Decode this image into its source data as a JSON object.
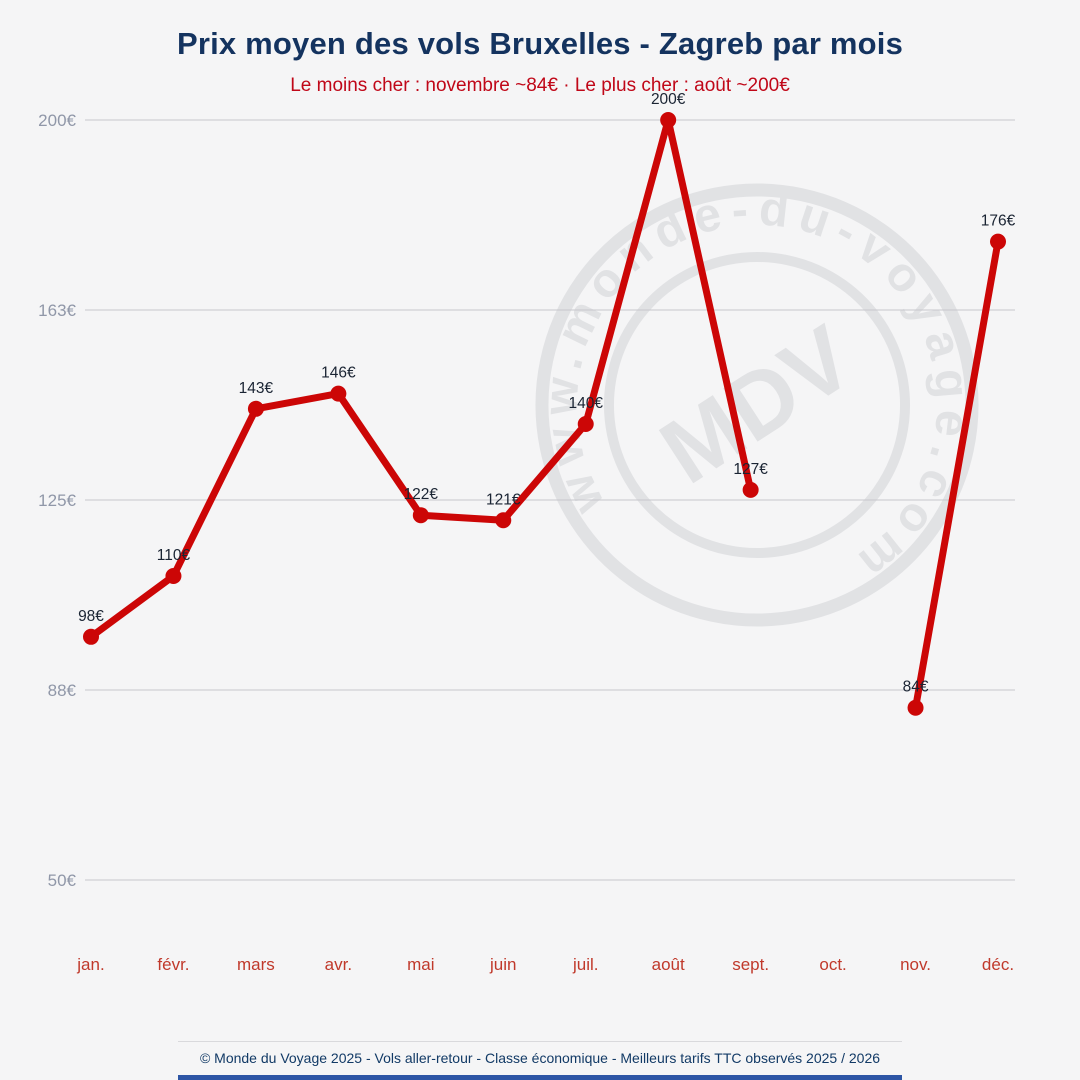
{
  "page": {
    "title": "Prix moyen des vols Bruxelles - Zagreb par mois",
    "subtitle": "Le moins cher : novembre ~84€ · Le plus cher : août ~200€",
    "footer": "© Monde du Voyage 2025 - Vols aller-retour - Classe économique - Meilleurs tarifs TTC observés 2025 / 2026",
    "watermark": "www.monde-du-voyage.com",
    "watermark_center": "MDV"
  },
  "colors": {
    "title": "#14335f",
    "subtitle": "#c00718",
    "line": "#cc0606",
    "point": "#cc0606",
    "label": "#1a2433",
    "axis_y": "#9097a8",
    "axis_x": "#c0392b",
    "grid": "#c6c7cc",
    "background": "#f5f5f6",
    "footer_text": "#123a66",
    "footer_bar": "#2d55a5",
    "watermark": "#d2d3d7"
  },
  "chart_data": {
    "type": "line",
    "title": "Prix moyen des vols Bruxelles - Zagreb par mois",
    "subtitle": "Le moins cher : novembre ~84€ · Le plus cher : août ~200€",
    "categories": [
      "jan.",
      "févr.",
      "mars",
      "avr.",
      "mai",
      "juin",
      "juil.",
      "août",
      "sept.",
      "oct.",
      "nov.",
      "déc."
    ],
    "values": [
      98,
      110,
      143,
      146,
      122,
      121,
      140,
      200,
      127,
      null,
      84,
      176
    ],
    "labels": [
      "98€",
      "110€",
      "143€",
      "146€",
      "122€",
      "121€",
      "140€",
      "200€",
      "127€",
      null,
      "84€",
      "176€"
    ],
    "y_ticks": [
      {
        "value": 200,
        "label": "200€"
      },
      {
        "value": 162.5,
        "label": "163€"
      },
      {
        "value": 125,
        "label": "125€"
      },
      {
        "value": 87.5,
        "label": "88€"
      },
      {
        "value": 50,
        "label": "50€"
      }
    ],
    "ylim": [
      50,
      200
    ],
    "xlabel": "",
    "ylabel": "",
    "grid": true,
    "legend": false,
    "min_month": "novembre",
    "min_value": 84,
    "max_month": "août",
    "max_value": 200
  }
}
